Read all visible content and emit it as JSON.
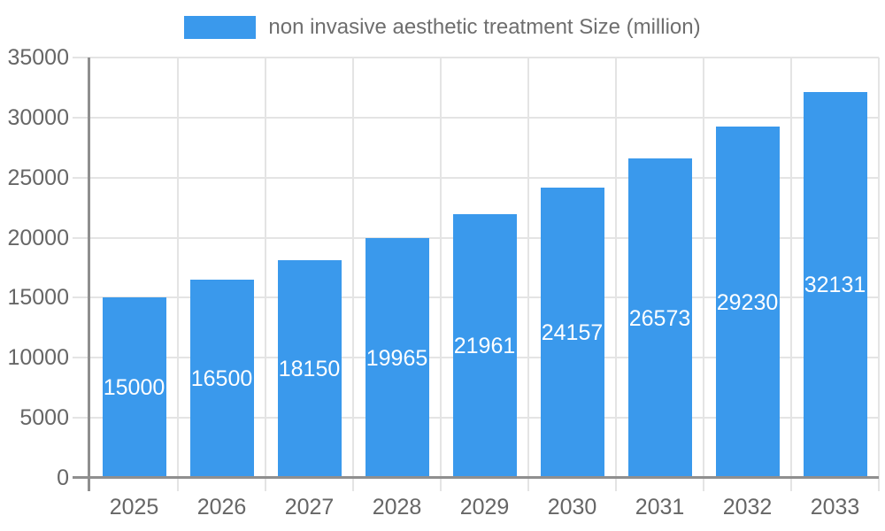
{
  "chart_data": {
    "type": "bar",
    "title": "",
    "legend": "non invasive aesthetic treatment Size (million)",
    "legend_position": "top",
    "categories": [
      "2025",
      "2026",
      "2027",
      "2028",
      "2029",
      "2030",
      "2031",
      "2032",
      "2033"
    ],
    "values": [
      15000,
      16500,
      18150,
      19965,
      21961,
      24157,
      26573,
      29230,
      32131
    ],
    "xlabel": "",
    "ylabel": "",
    "ylim": [
      0,
      35000
    ],
    "yticks": [
      0,
      5000,
      10000,
      15000,
      20000,
      25000,
      30000,
      35000
    ],
    "grid": true,
    "colors": {
      "bar": "#3a99ec",
      "grid": "#e4e4e4",
      "axis": "#8f8f8f",
      "tick_label": "#666666",
      "legend_text": "#6e6e6e",
      "bar_label": "#ffffff"
    }
  }
}
